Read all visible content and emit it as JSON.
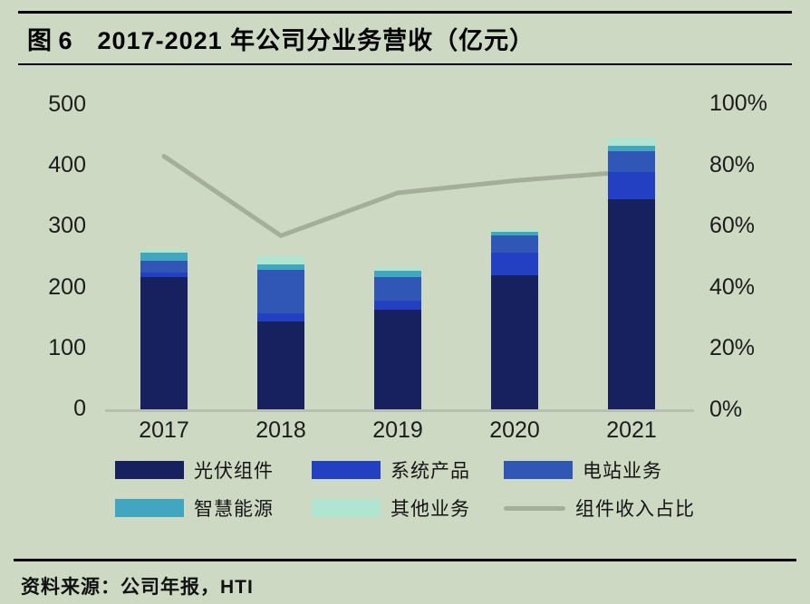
{
  "title": {
    "figure_label": "图 6",
    "text": "2017-2021 年公司分业务营收（亿元）"
  },
  "source": {
    "label": "资料来源：公司年报，HTI"
  },
  "colors": {
    "background": "#cdd9c2",
    "axis_line": "#b8bfae",
    "text": "#1c1c1c",
    "title_text": "#000000"
  },
  "chart_data": {
    "type": "bar",
    "subtype": "stacked-bars-with-percentage-line",
    "title": "2017-2021 年公司分业务营收（亿元）",
    "categories": [
      "2017",
      "2018",
      "2019",
      "2020",
      "2021"
    ],
    "series": [
      {
        "name": "光伏组件",
        "kind": "bar",
        "color": "#182160",
        "values": [
          217,
          144,
          164,
          220,
          345
        ]
      },
      {
        "name": "系统产品",
        "kind": "bar",
        "color": "#2340c3",
        "values": [
          8,
          13,
          15,
          38,
          45
        ]
      },
      {
        "name": "电站业务",
        "kind": "bar",
        "color": "#3056b6",
        "values": [
          19,
          72,
          39,
          27,
          34
        ]
      },
      {
        "name": "智慧能源",
        "kind": "bar",
        "color": "#41a7c1",
        "values": [
          13,
          9,
          9,
          6,
          9
        ]
      },
      {
        "name": "其他业务",
        "kind": "bar",
        "color": "#b2e4d2",
        "values": [
          5,
          13,
          6,
          4,
          13
        ]
      },
      {
        "name": "组件收入占比",
        "kind": "line",
        "color": "#a5ad9b",
        "axis": "right",
        "values_pct": [
          83,
          57,
          71,
          75,
          78
        ]
      }
    ],
    "left_axis": {
      "min": 0,
      "max": 500,
      "step": 100,
      "ticks": [
        "0",
        "100",
        "200",
        "300",
        "400",
        "500"
      ]
    },
    "right_axis": {
      "min": 0,
      "max": 100,
      "step": 20,
      "ticks": [
        "0%",
        "20%",
        "40%",
        "60%",
        "80%",
        "100%"
      ]
    },
    "gridlines": false,
    "legend_position": "bottom"
  }
}
